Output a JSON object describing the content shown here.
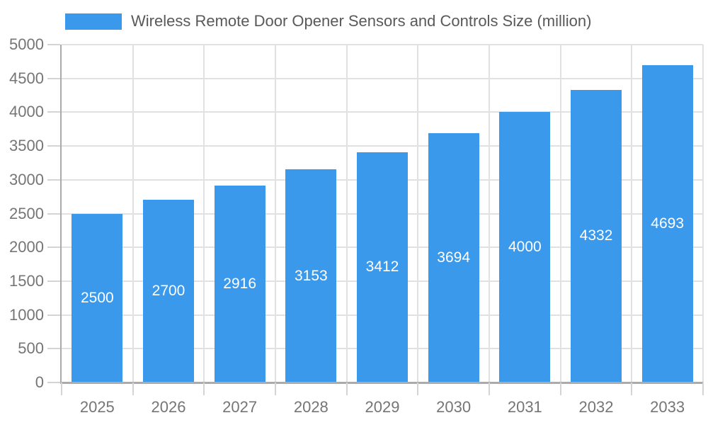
{
  "chart_data": {
    "type": "bar",
    "title": "Wireless Remote Door Opener Sensors and Controls Size (million)",
    "categories": [
      "2025",
      "2026",
      "2027",
      "2028",
      "2029",
      "2030",
      "2031",
      "2032",
      "2033"
    ],
    "values": [
      2500,
      2700,
      2916,
      3153,
      3412,
      3694,
      4000,
      4332,
      4693
    ],
    "xlabel": "",
    "ylabel": "",
    "ylim": [
      0,
      5000
    ],
    "ytick_step": 500,
    "ytick_labels": [
      "0",
      "500",
      "1000",
      "1500",
      "2000",
      "2500",
      "3000",
      "3500",
      "4000",
      "4500",
      "5000"
    ],
    "grid": true,
    "legend_position": "top-left",
    "value_labels_position": "inside-center"
  },
  "colors": {
    "bar": "#3B99EC",
    "bar_label": "#FFFFFF",
    "grid": "#E1E1E1",
    "axis": "#ABABAB",
    "tick": "#D4D4D4",
    "axis_label": "#757575",
    "legend_text": "#595959",
    "background": "#FFFFFF"
  }
}
